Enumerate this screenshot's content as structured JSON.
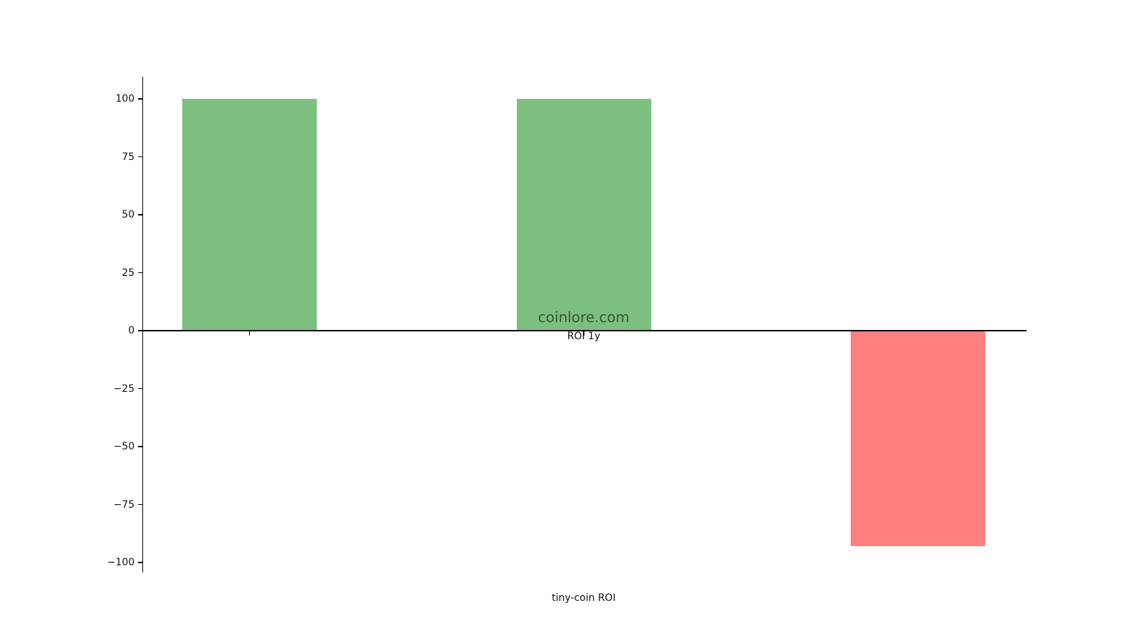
{
  "chart_data": {
    "type": "bar",
    "title": "",
    "xlabel": "tiny-coin ROI",
    "ylabel": "",
    "categories": [
      "",
      "ROI 1y",
      ""
    ],
    "values": [
      100,
      100,
      -93
    ],
    "series": [
      {
        "name": "tiny-coin ROI",
        "values": [
          100,
          100,
          -93
        ]
      }
    ],
    "y_ticks": [
      100,
      75,
      50,
      25,
      0,
      -25,
      -50,
      -75,
      -100
    ],
    "y_tick_labels": [
      "100",
      "75",
      "50",
      "25",
      "0",
      "−25",
      "−50",
      "−75",
      "−100"
    ],
    "ylim": [
      -103.8,
      109.7
    ],
    "grid": false,
    "legend": null,
    "colors": {
      "positive_bar": "#7dbf7e",
      "negative_bar": "#ff7f7f",
      "axis": "#000000",
      "tick_text": "#111111"
    },
    "watermark": "coinlore.com"
  }
}
